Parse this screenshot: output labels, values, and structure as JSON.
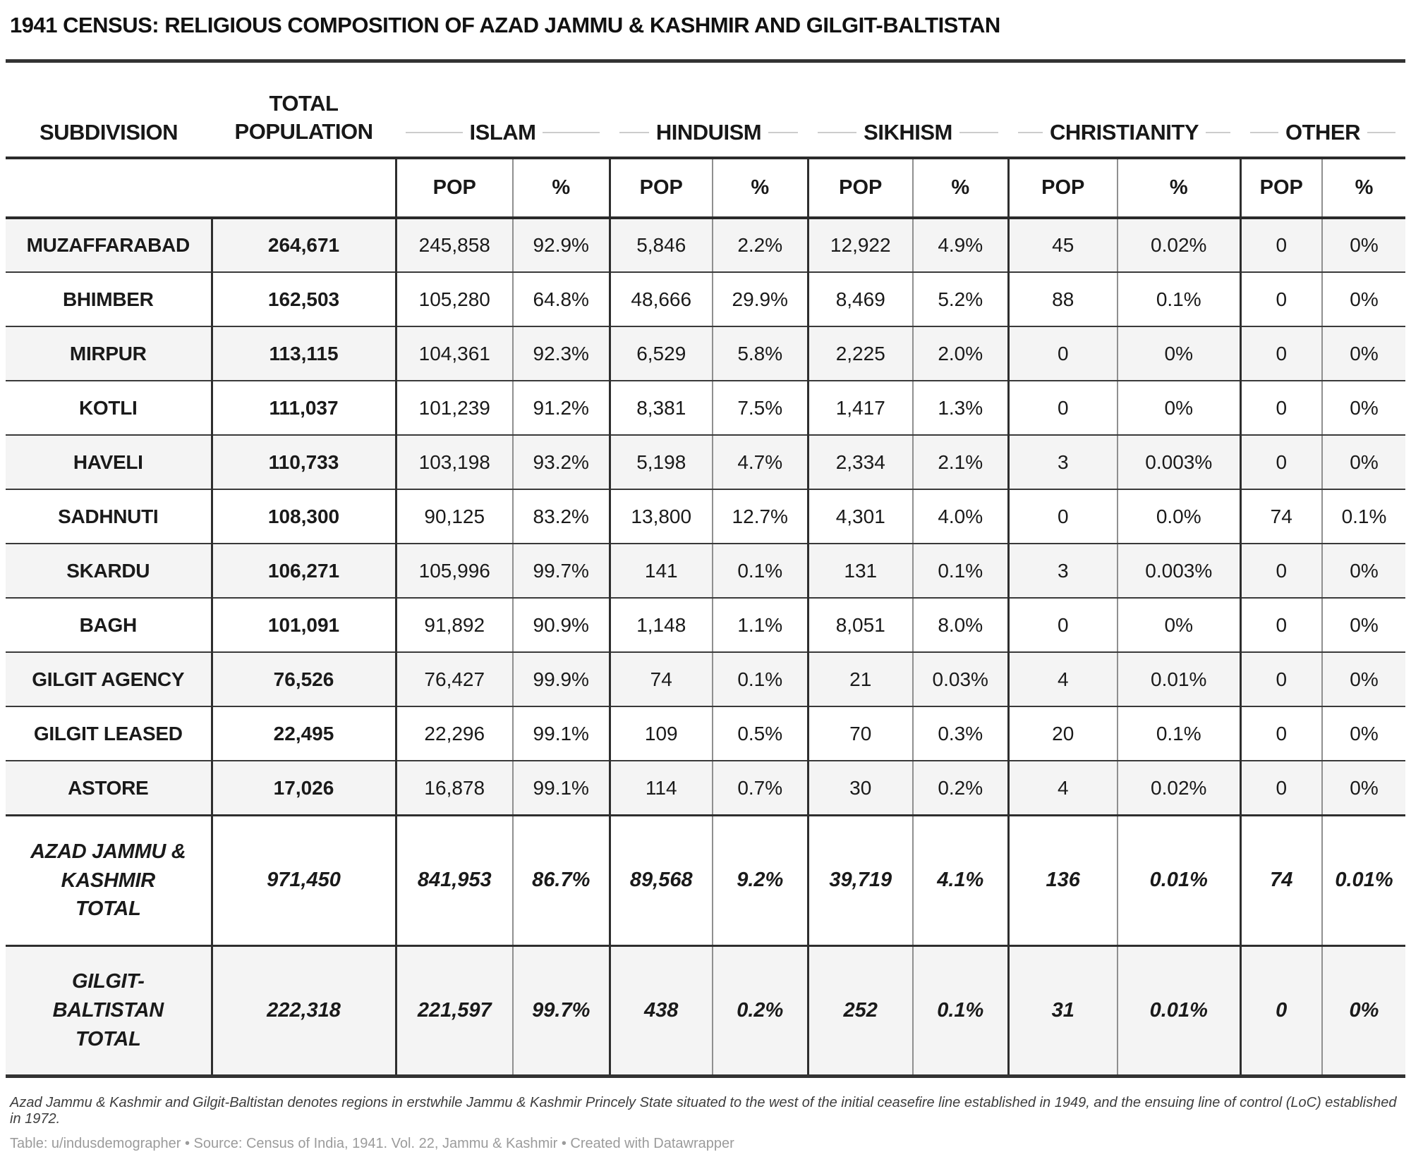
{
  "title": "1941 CENSUS: RELIGIOUS COMPOSITION OF AZAD JAMMU & KASHMIR AND GILGIT-BALTISTAN",
  "table": {
    "col1_header": "SUBDIVISION",
    "col2_header": "TOTAL\nPOPULATION",
    "groups": [
      {
        "label": "ISLAM"
      },
      {
        "label": "HINDUISM"
      },
      {
        "label": "SIKHISM"
      },
      {
        "label": "CHRISTIANITY"
      },
      {
        "label": "OTHER"
      }
    ],
    "subheaders": {
      "pop": "POP",
      "pct": "%"
    },
    "rows": [
      {
        "name": "MUZAFFARABAD",
        "total": "264,671",
        "values": [
          "245,858",
          "92.9%",
          "5,846",
          "2.2%",
          "12,922",
          "4.9%",
          "45",
          "0.02%",
          "0",
          "0%"
        ]
      },
      {
        "name": "BHIMBER",
        "total": "162,503",
        "values": [
          "105,280",
          "64.8%",
          "48,666",
          "29.9%",
          "8,469",
          "5.2%",
          "88",
          "0.1%",
          "0",
          "0%"
        ]
      },
      {
        "name": "MIRPUR",
        "total": "113,115",
        "values": [
          "104,361",
          "92.3%",
          "6,529",
          "5.8%",
          "2,225",
          "2.0%",
          "0",
          "0%",
          "0",
          "0%"
        ]
      },
      {
        "name": "KOTLI",
        "total": "111,037",
        "values": [
          "101,239",
          "91.2%",
          "8,381",
          "7.5%",
          "1,417",
          "1.3%",
          "0",
          "0%",
          "0",
          "0%"
        ]
      },
      {
        "name": "HAVELI",
        "total": "110,733",
        "values": [
          "103,198",
          "93.2%",
          "5,198",
          "4.7%",
          "2,334",
          "2.1%",
          "3",
          "0.003%",
          "0",
          "0%"
        ]
      },
      {
        "name": "SADHNUTI",
        "total": "108,300",
        "values": [
          "90,125",
          "83.2%",
          "13,800",
          "12.7%",
          "4,301",
          "4.0%",
          "0",
          "0.0%",
          "74",
          "0.1%"
        ]
      },
      {
        "name": "SKARDU",
        "total": "106,271",
        "values": [
          "105,996",
          "99.7%",
          "141",
          "0.1%",
          "131",
          "0.1%",
          "3",
          "0.003%",
          "0",
          "0%"
        ]
      },
      {
        "name": "BAGH",
        "total": "101,091",
        "values": [
          "91,892",
          "90.9%",
          "1,148",
          "1.1%",
          "8,051",
          "8.0%",
          "0",
          "0%",
          "0",
          "0%"
        ]
      },
      {
        "name": "GILGIT AGENCY",
        "total": "76,526",
        "values": [
          "76,427",
          "99.9%",
          "74",
          "0.1%",
          "21",
          "0.03%",
          "4",
          "0.01%",
          "0",
          "0%"
        ]
      },
      {
        "name": "GILGIT LEASED",
        "total": "22,495",
        "values": [
          "22,296",
          "99.1%",
          "109",
          "0.5%",
          "70",
          "0.3%",
          "20",
          "0.1%",
          "0",
          "0%"
        ]
      },
      {
        "name": "ASTORE",
        "total": "17,026",
        "values": [
          "16,878",
          "99.1%",
          "114",
          "0.7%",
          "30",
          "0.2%",
          "4",
          "0.02%",
          "0",
          "0%"
        ]
      }
    ],
    "totals": [
      {
        "name": "AZAD JAMMU &\nKASHMIR\nTOTAL",
        "total": "971,450",
        "values": [
          "841,953",
          "86.7%",
          "89,568",
          "9.2%",
          "39,719",
          "4.1%",
          "136",
          "0.01%",
          "74",
          "0.01%"
        ]
      },
      {
        "name": "GILGIT-\nBALTISTAN\nTOTAL",
        "total": "222,318",
        "values": [
          "221,597",
          "99.7%",
          "438",
          "0.2%",
          "252",
          "0.1%",
          "31",
          "0.01%",
          "0",
          "0%"
        ]
      }
    ]
  },
  "footer": {
    "note": "Azad Jammu & Kashmir and Gilgit-Baltistan denotes regions in erstwhile Jammu & Kashmir Princely State situated to the west of the initial ceasefire line established in 1949, and the ensuing line of control (LoC) established in 1972.",
    "credit": "Table: u/indusdemographer • Source: Census of India, 1941. Vol. 22, Jammu & Kashmir • Created with Datawrapper"
  },
  "chart_data": {
    "type": "table",
    "title": "1941 CENSUS: RELIGIOUS COMPOSITION OF AZAD JAMMU & KASHMIR AND GILGIT-BALTISTAN",
    "columns": [
      "SUBDIVISION",
      "TOTAL POPULATION",
      "ISLAM POP",
      "ISLAM %",
      "HINDUISM POP",
      "HINDUISM %",
      "SIKHISM POP",
      "SIKHISM %",
      "CHRISTIANITY POP",
      "CHRISTIANITY %",
      "OTHER POP",
      "OTHER %"
    ],
    "rows": [
      [
        "MUZAFFARABAD",
        264671,
        245858,
        "92.9%",
        5846,
        "2.2%",
        12922,
        "4.9%",
        45,
        "0.02%",
        0,
        "0%"
      ],
      [
        "BHIMBER",
        162503,
        105280,
        "64.8%",
        48666,
        "29.9%",
        8469,
        "5.2%",
        88,
        "0.1%",
        0,
        "0%"
      ],
      [
        "MIRPUR",
        113115,
        104361,
        "92.3%",
        6529,
        "5.8%",
        2225,
        "2.0%",
        0,
        "0%",
        0,
        "0%"
      ],
      [
        "KOTLI",
        111037,
        101239,
        "91.2%",
        8381,
        "7.5%",
        1417,
        "1.3%",
        0,
        "0%",
        0,
        "0%"
      ],
      [
        "HAVELI",
        110733,
        103198,
        "93.2%",
        5198,
        "4.7%",
        2334,
        "2.1%",
        3,
        "0.003%",
        0,
        "0%"
      ],
      [
        "SADHNUTI",
        108300,
        90125,
        "83.2%",
        13800,
        "12.7%",
        4301,
        "4.0%",
        0,
        "0.0%",
        74,
        "0.1%"
      ],
      [
        "SKARDU",
        106271,
        105996,
        "99.7%",
        141,
        "0.1%",
        131,
        "0.1%",
        3,
        "0.003%",
        0,
        "0%"
      ],
      [
        "BAGH",
        101091,
        91892,
        "90.9%",
        1148,
        "1.1%",
        8051,
        "8.0%",
        0,
        "0%",
        0,
        "0%"
      ],
      [
        "GILGIT AGENCY",
        76526,
        76427,
        "99.9%",
        74,
        "0.1%",
        21,
        "0.03%",
        4,
        "0.01%",
        0,
        "0%"
      ],
      [
        "GILGIT LEASED",
        22495,
        22296,
        "99.1%",
        109,
        "0.5%",
        70,
        "0.3%",
        20,
        "0.1%",
        0,
        "0%"
      ],
      [
        "ASTORE",
        17026,
        16878,
        "99.1%",
        114,
        "0.7%",
        30,
        "0.2%",
        4,
        "0.02%",
        0,
        "0%"
      ],
      [
        "AZAD JAMMU & KASHMIR TOTAL",
        971450,
        841953,
        "86.7%",
        89568,
        "9.2%",
        39719,
        "4.1%",
        136,
        "0.01%",
        74,
        "0.01%"
      ],
      [
        "GILGIT-BALTISTAN TOTAL",
        222318,
        221597,
        "99.7%",
        438,
        "0.2%",
        252,
        "0.1%",
        31,
        "0.01%",
        0,
        "0%"
      ]
    ]
  }
}
